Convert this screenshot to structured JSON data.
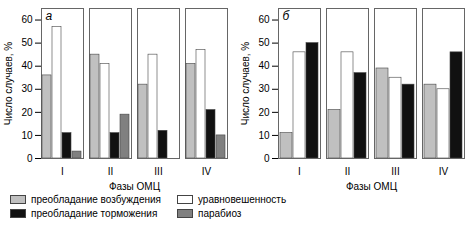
{
  "chart_data": [
    {
      "type": "bar",
      "title": "а",
      "xlabel": "Фазы ОМЦ",
      "ylabel": "Число случаев, %",
      "categories": [
        "I",
        "II",
        "III",
        "IV"
      ],
      "series": [
        {
          "name": "преобладание возбуждения",
          "color": "#c0c0c0",
          "values": [
            36,
            45,
            32,
            41
          ]
        },
        {
          "name": "уравновешенность",
          "color": "#ffffff",
          "values": [
            57,
            41,
            45,
            47
          ]
        },
        {
          "name": "преобладание торможения",
          "color": "#111111",
          "values": [
            11,
            11,
            12,
            21
          ]
        },
        {
          "name": "парабиоз",
          "color": "#808080",
          "values": [
            3,
            19,
            0,
            10
          ]
        }
      ],
      "ylim": [
        0,
        65
      ],
      "yticks": [
        0,
        10,
        20,
        30,
        40,
        50,
        60
      ]
    },
    {
      "type": "bar",
      "title": "б",
      "xlabel": "Фазы ОМЦ",
      "ylabel": "Число случаев, %",
      "categories": [
        "I",
        "II",
        "III",
        "IV"
      ],
      "series": [
        {
          "name": "преобладание возбуждения",
          "color": "#c0c0c0",
          "values": [
            11,
            21,
            39,
            32
          ]
        },
        {
          "name": "уравновешенность",
          "color": "#ffffff",
          "values": [
            46,
            46,
            35,
            30
          ]
        },
        {
          "name": "преобладание торможения",
          "color": "#111111",
          "values": [
            50,
            37,
            32,
            46
          ]
        }
      ],
      "ylim": [
        0,
        65
      ],
      "yticks": [
        0,
        10,
        20,
        30,
        40,
        50,
        60
      ]
    }
  ]
}
